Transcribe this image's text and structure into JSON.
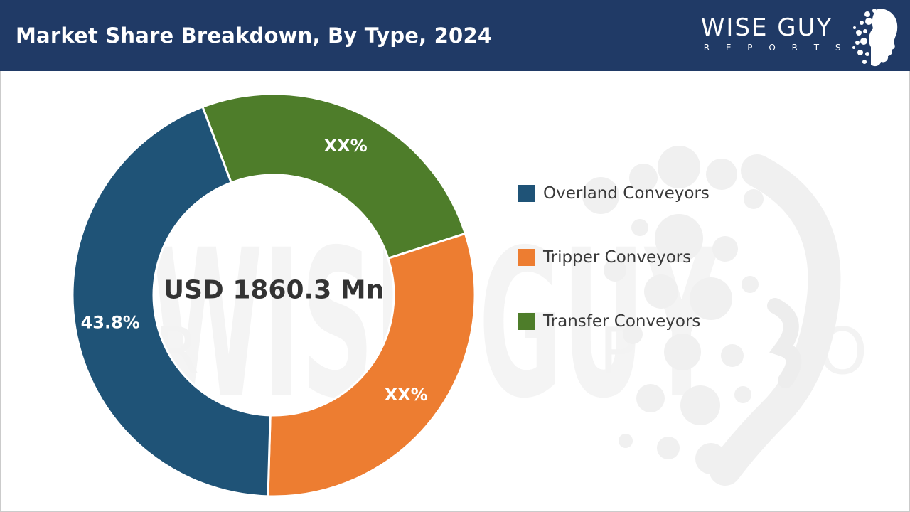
{
  "header": {
    "title": "Market Share Breakdown, By Type, 2024",
    "logo": {
      "line1": "WISE GUY",
      "line2": "REPORTS"
    }
  },
  "watermark": {
    "line1": "WISE GUY",
    "line2": "REPORTS"
  },
  "chart_data": {
    "type": "pie",
    "donut": true,
    "title": "Market Share Breakdown, By Type, 2024",
    "center_label": "USD 1860.3 Mn",
    "start_angle_deg": -20.7,
    "units": "%",
    "legend_position": "right",
    "slices": [
      {
        "name": "Transfer Conveyors",
        "value": 25.8,
        "label": "XX%",
        "color": "#4e7d2a"
      },
      {
        "name": "Tripper Conveyors",
        "value": 30.4,
        "label": "XX%",
        "color": "#ed7d31"
      },
      {
        "name": "Overland Conveyors",
        "value": 43.8,
        "label": "43.8%",
        "color": "#1f5377"
      }
    ]
  },
  "legend": {
    "items": [
      {
        "label": "Overland Conveyors",
        "color": "#1f5377"
      },
      {
        "label": "Tripper Conveyors",
        "color": "#ed7d31"
      },
      {
        "label": "Transfer Conveyors",
        "color": "#4e7d2a"
      }
    ]
  },
  "colors": {
    "header_bg": "#203a66",
    "center_text": "#333333",
    "page_border": "#cbcbcb",
    "watermark": "#f2f2f2"
  }
}
